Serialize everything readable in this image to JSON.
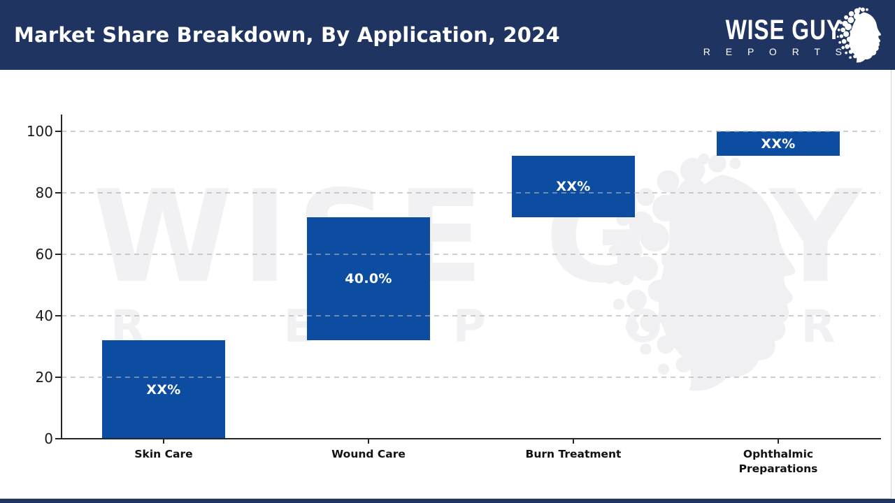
{
  "header": {
    "title": "Market Share Breakdown, By Application, 2024",
    "logo": {
      "line1": "WISE GUY",
      "line2": "R E P O R T S"
    }
  },
  "watermark": {
    "line1": "WISE GUY",
    "line2": "R E P O R T S"
  },
  "theme": {
    "header_bg": "#1f3461",
    "footer_bg": "#1f3461",
    "bar_blue": "#0c4da2",
    "watermark_gray": "#f1f1f3",
    "gridline_gray": "#b0b0b0",
    "axis_color": "#262626"
  },
  "chart_data": {
    "type": "bar",
    "subtype": "waterfall",
    "title": "Market Share Breakdown, By Application, 2024",
    "categories": [
      "Skin Care",
      "Wound Care",
      "Burn Treatment",
      "Ophthalmic Preparations"
    ],
    "series": [
      {
        "name": "Market Share",
        "segments": [
          {
            "category": "Skin Care",
            "start": 0,
            "end": 32,
            "label": "XX%"
          },
          {
            "category": "Wound Care",
            "start": 32,
            "end": 72,
            "label": "40.0%"
          },
          {
            "category": "Burn Treatment",
            "start": 72,
            "end": 92,
            "label": "XX%"
          },
          {
            "category": "Ophthalmic Preparations",
            "start": 92,
            "end": 100,
            "label": "XX%"
          }
        ]
      }
    ],
    "xlabel": "",
    "ylabel": "",
    "ylim": [
      0,
      100
    ],
    "yticks": [
      0,
      20,
      40,
      60,
      80,
      100
    ],
    "grid": "horizontal-dashed",
    "legend": "none",
    "bar_color": "#0c4da2",
    "label_color": "#ffffff"
  }
}
